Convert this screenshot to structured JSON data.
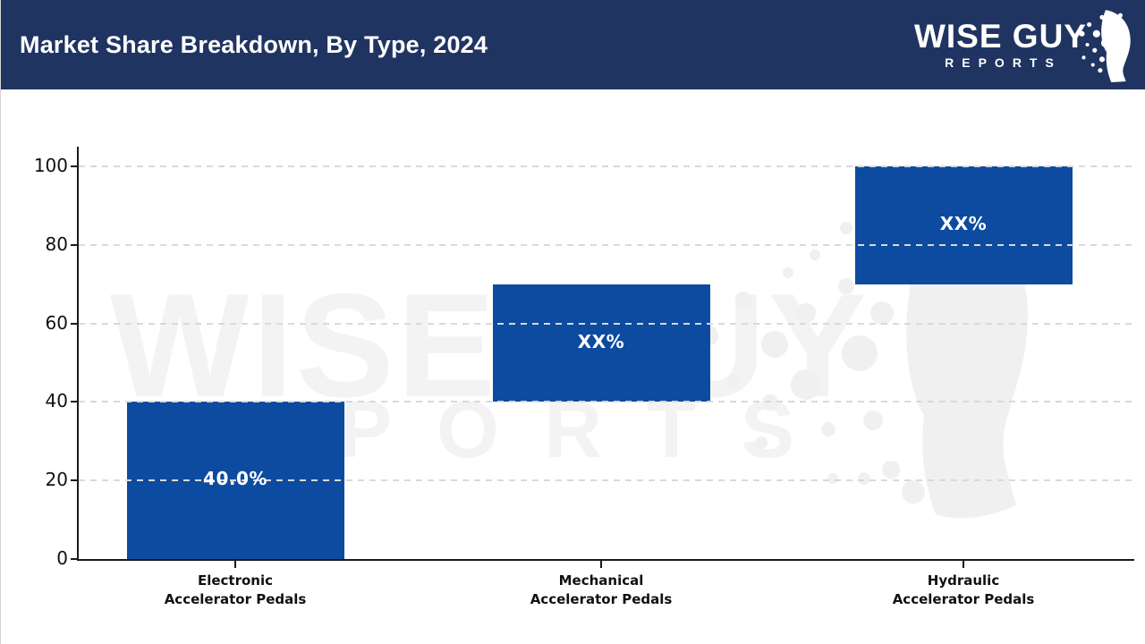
{
  "header": {
    "title": "Market Share Breakdown, By Type, 2024",
    "logo": {
      "top": "WISE GUY",
      "bottom": "REPORTS"
    }
  },
  "watermark": {
    "line1": "WISE GUY",
    "line2": "REPORTS"
  },
  "colors": {
    "header_bg": "#203462",
    "bar": "#0d4ba0",
    "grid": "#d9d9d9",
    "bar_label": "#ffffff",
    "axis": "#1a1a1a",
    "watermark": "#f3f3f3"
  },
  "chart_data": {
    "type": "bar",
    "subtype": "floating-segment-bar",
    "title": "Market Share Breakdown, By Type, 2024",
    "categories": [
      {
        "line1": "Electronic",
        "line2": "Accelerator Pedals"
      },
      {
        "line1": "Mechanical",
        "line2": "Accelerator Pedals"
      },
      {
        "line1": "Hydraulic",
        "line2": "Accelerator Pedals"
      }
    ],
    "bars": [
      {
        "label": "40.0%",
        "start": 0,
        "end": 40
      },
      {
        "label": "XX%",
        "start": 40,
        "end": 70
      },
      {
        "label": "XX%",
        "start": 70,
        "end": 100
      }
    ],
    "yticks": [
      0,
      20,
      40,
      60,
      80,
      100
    ],
    "ylim": [
      0,
      105
    ],
    "xlabel": "",
    "ylabel": "",
    "grid": "horizontal-dashed",
    "legend": "none"
  }
}
